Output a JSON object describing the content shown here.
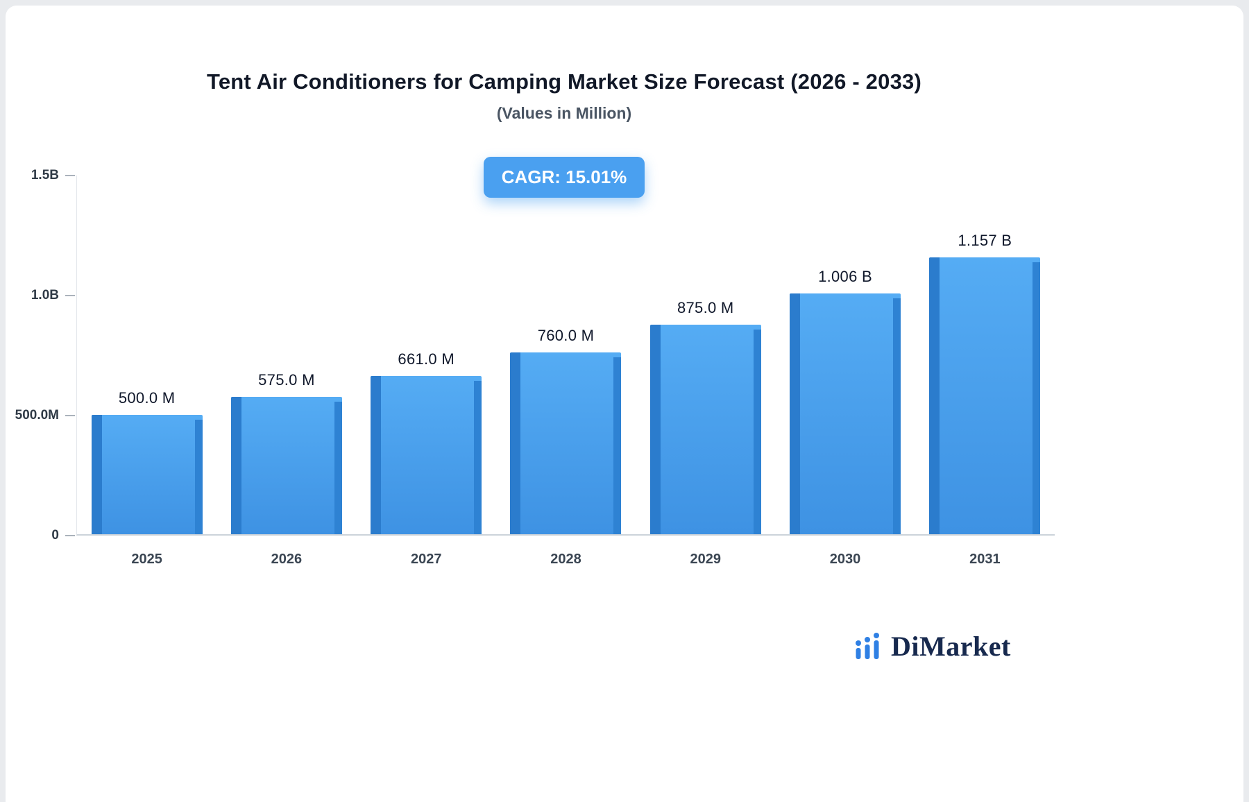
{
  "header": {
    "title": "Tent Air Conditioners for Camping Market Size Forecast (2026 - 2033)",
    "subtitle": "(Values in Million)"
  },
  "badge": {
    "label": "CAGR: 15.01%",
    "background": "#4aa0f0",
    "text_color": "#ffffff"
  },
  "chart_data": {
    "type": "bar",
    "title": "Tent Air Conditioners for Camping Market Size Forecast (2026 - 2033)",
    "subtitle": "(Values in Million)",
    "categories": [
      "2025",
      "2026",
      "2027",
      "2028",
      "2029",
      "2030",
      "2031"
    ],
    "values_millions": [
      500,
      575,
      661,
      760,
      875,
      1006,
      1157
    ],
    "value_labels": [
      "500.0 M",
      "575.0 M",
      "661.0 M",
      "760.0 M",
      "875.0 M",
      "1.006 B",
      "1.157 B"
    ],
    "xlabel": "",
    "ylabel": "",
    "ylim": [
      0,
      1500
    ],
    "y_ticks": [
      {
        "label": "1.5B",
        "value": 1500
      },
      {
        "label": "1.0B",
        "value": 1000
      },
      {
        "label": "500.0M",
        "value": 500
      },
      {
        "label": "0",
        "value": 0
      }
    ],
    "grid": false,
    "legend": false,
    "bar_color_top": "#55acf4",
    "bar_color_bottom": "#3e92e3",
    "bar_side_color": "#2b7ccd"
  },
  "logo": {
    "text": "DiMarket",
    "icon": "bar-chart-dots-icon",
    "text_color": "#17294e",
    "icon_color": "#2f80e4"
  }
}
